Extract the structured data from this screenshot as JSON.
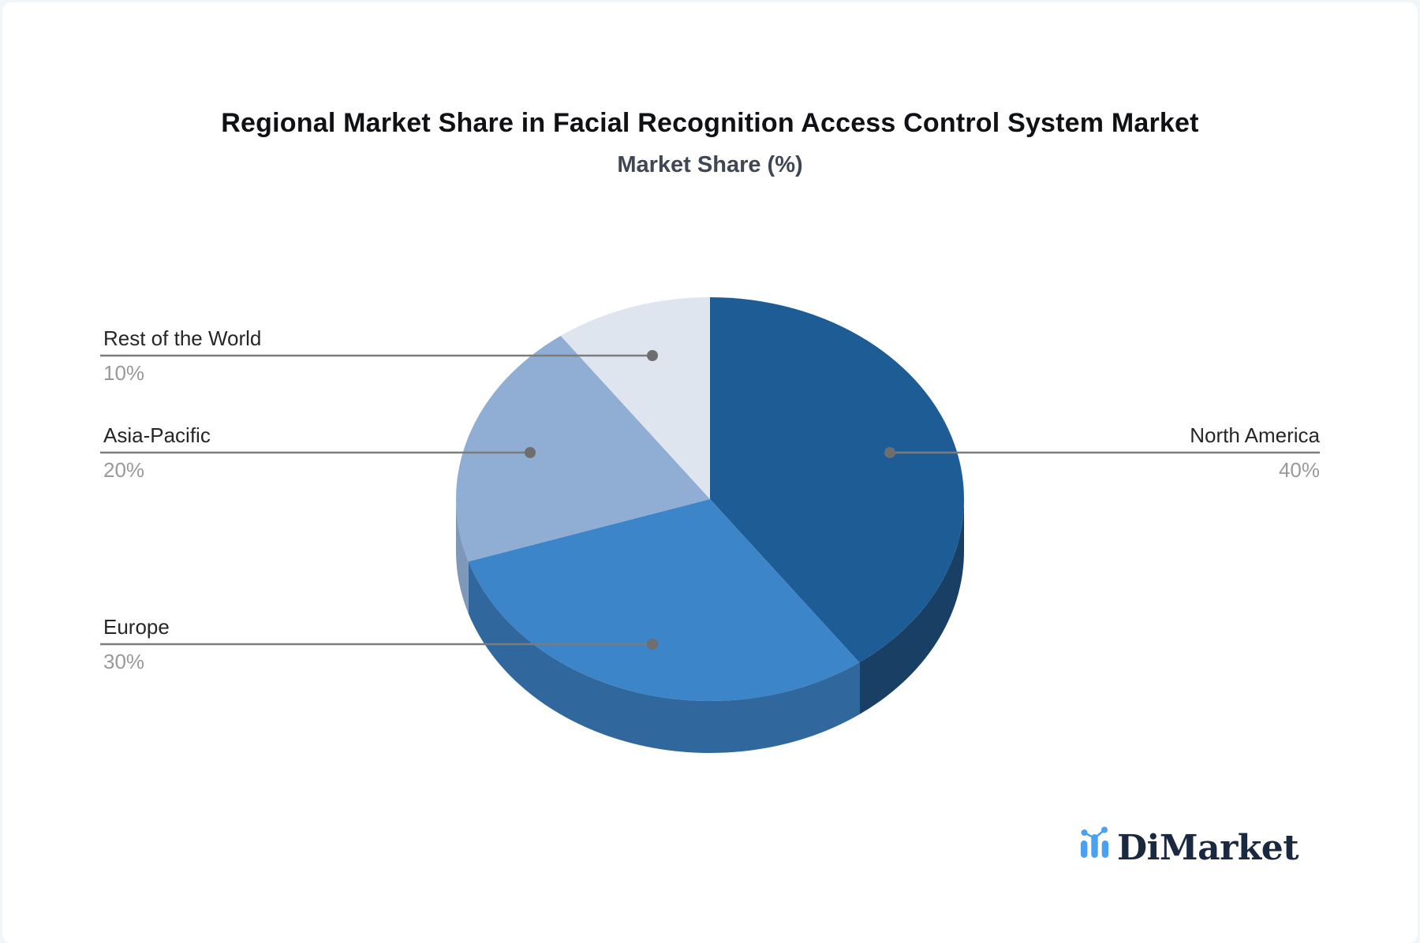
{
  "page": {
    "background": "#f3f6f9",
    "card_background": "#ffffff"
  },
  "brand": {
    "name": "DiMarket",
    "icon": "bar-chart-logo-icon",
    "icon_color": "#4aa0f3",
    "text_color": "#1b2940"
  },
  "callouts": {
    "line_color": "#7c7c7c",
    "dot_color": "#6e6e6e",
    "label_color": "#262626",
    "pct_color": "#999999"
  },
  "chart_data": {
    "type": "pie",
    "style": "3d",
    "title": "Regional Market Share in Facial Recognition Access Control System Market",
    "subtitle": "Market Share (%)",
    "unit": "%",
    "start_angle_deg": 0,
    "direction": "clockwise",
    "legend_position": "callout-labels",
    "slices": [
      {
        "label": "North America",
        "value": 40,
        "pct": "40%",
        "color": "#1e5c95",
        "side_color": "#1a3f64"
      },
      {
        "label": "Europe",
        "value": 30,
        "pct": "30%",
        "color": "#3c85c8",
        "side_color": "#30689d"
      },
      {
        "label": "Asia-Pacific",
        "value": 20,
        "pct": "20%",
        "color": "#90aed3",
        "side_color": "#7d98b9"
      },
      {
        "label": "Rest of the World",
        "value": 10,
        "pct": "10%",
        "color": "#dee5ef",
        "side_color": "#b9c4d6"
      }
    ]
  }
}
